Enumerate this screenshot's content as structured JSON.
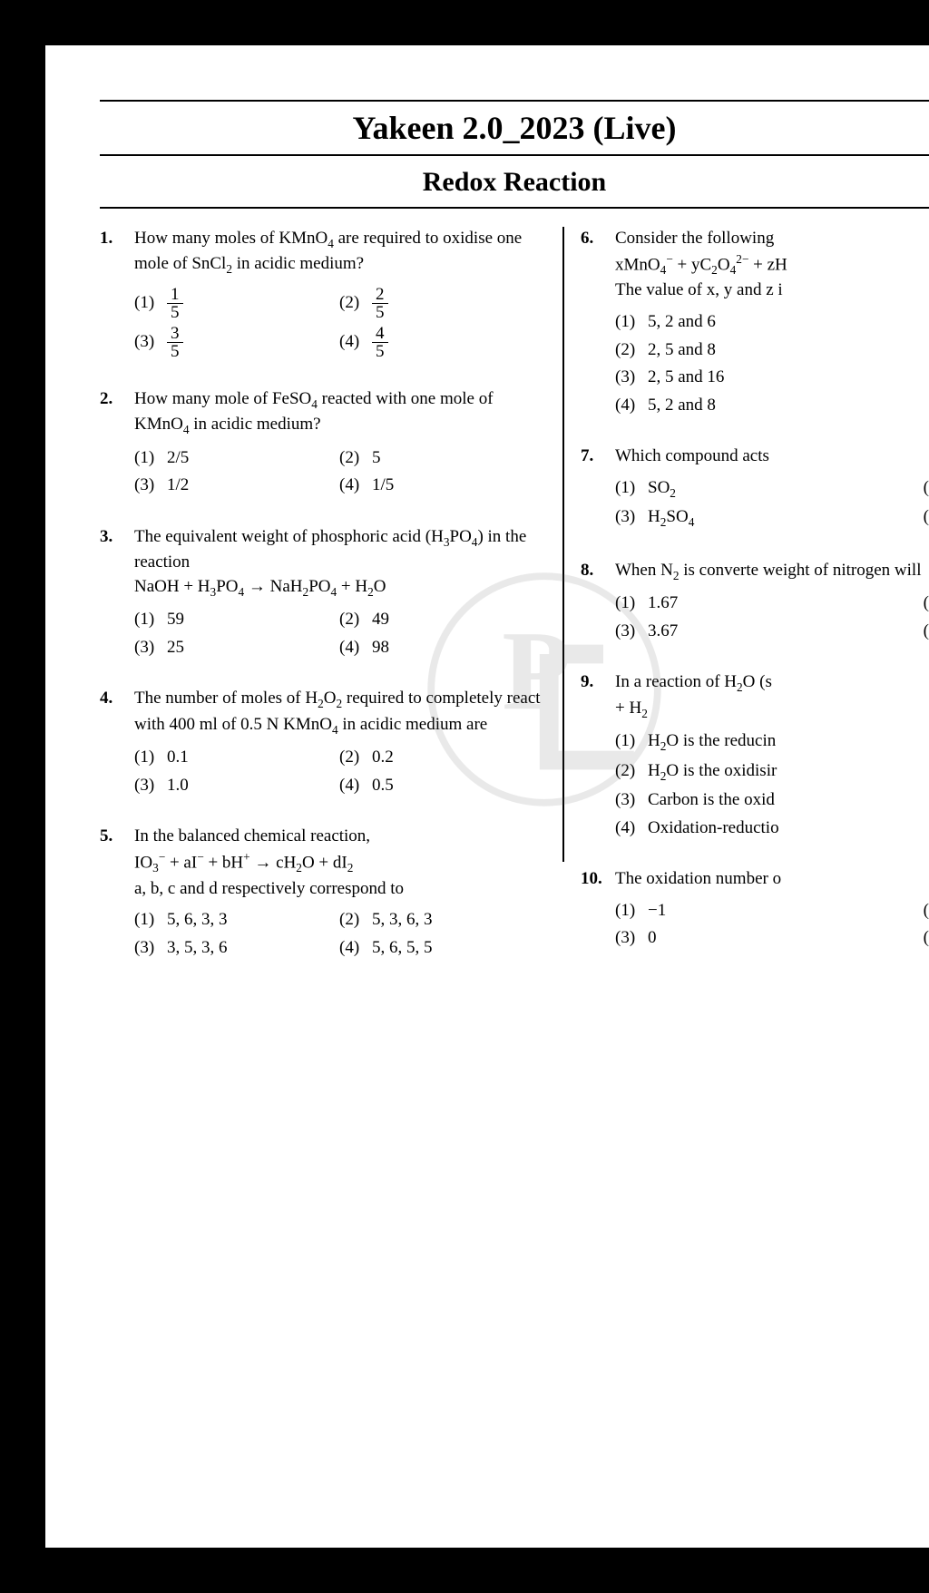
{
  "title": "Yakeen 2.0_2023 (Live)",
  "subtitle": "Redox Reaction",
  "left_questions": [
    {
      "num": "1.",
      "type": "frac",
      "text": "How many moles of KMnO<sub>4</sub> are required to oxidise one mole of SnCl<sub>2</sub> in acidic medium?",
      "options": [
        [
          {
            "n": "(1)",
            "num": "1",
            "den": "5"
          },
          {
            "n": "(2)",
            "num": "2",
            "den": "5"
          }
        ],
        [
          {
            "n": "(3)",
            "num": "3",
            "den": "5"
          },
          {
            "n": "(4)",
            "num": "4",
            "den": "5"
          }
        ]
      ]
    },
    {
      "num": "2.",
      "type": "plain",
      "text": "How many mole of FeSO<sub>4</sub> reacted with one mole of KMnO<sub>4</sub> in acidic medium?",
      "options": [
        [
          {
            "n": "(1)",
            "v": "2/5"
          },
          {
            "n": "(2)",
            "v": "5"
          }
        ],
        [
          {
            "n": "(3)",
            "v": "1/2"
          },
          {
            "n": "(4)",
            "v": "1/5"
          }
        ]
      ]
    },
    {
      "num": "3.",
      "type": "plain",
      "text": "The equivalent weight of phosphoric acid (H<sub>3</sub>PO<sub>4</sub>) in the reaction<br>NaOH + H<sub>3</sub>PO<sub>4</sub> → NaH<sub>2</sub>PO<sub>4</sub> + H<sub>2</sub>O",
      "options": [
        [
          {
            "n": "(1)",
            "v": "59"
          },
          {
            "n": "(2)",
            "v": "49"
          }
        ],
        [
          {
            "n": "(3)",
            "v": "25"
          },
          {
            "n": "(4)",
            "v": "98"
          }
        ]
      ]
    },
    {
      "num": "4.",
      "type": "plain",
      "text": "The number of moles of H<sub>2</sub>O<sub>2</sub> required to completely react with 400 ml of 0.5 N KMnO<sub>4</sub> in acidic medium are",
      "options": [
        [
          {
            "n": "(1)",
            "v": "0.1"
          },
          {
            "n": "(2)",
            "v": "0.2"
          }
        ],
        [
          {
            "n": "(3)",
            "v": "1.0"
          },
          {
            "n": "(4)",
            "v": "0.5"
          }
        ]
      ]
    },
    {
      "num": "5.",
      "type": "plain",
      "text": "In the balanced chemical reaction,<br>IO<sub>3</sub><sup>−</sup> + aI<sup>−</sup> + bH<sup>+</sup> → cH<sub>2</sub>O + dI<sub>2</sub><br>a, b, c and d respectively correspond to",
      "options": [
        [
          {
            "n": "(1)",
            "v": "5, 6, 3, 3"
          },
          {
            "n": "(2)",
            "v": "5, 3, 6, 3"
          }
        ],
        [
          {
            "n": "(3)",
            "v": "3, 5, 3, 6"
          },
          {
            "n": "(4)",
            "v": "5, 6, 5, 5"
          }
        ]
      ]
    }
  ],
  "right_questions": [
    {
      "num": "6.",
      "type": "full",
      "text": "Consider the following<br>xMnO<sub>4</sub><sup>−</sup> + yC<sub>2</sub>O<sub>4</sub><sup>2−</sup> + zH<br>The value of x, y and z i",
      "options": [
        {
          "n": "(1)",
          "v": "5, 2 and 6"
        },
        {
          "n": "(2)",
          "v": "2, 5 and 8"
        },
        {
          "n": "(3)",
          "v": "2, 5 and 16"
        },
        {
          "n": "(4)",
          "v": "5, 2 and 8"
        }
      ]
    },
    {
      "num": "7.",
      "type": "half-trail",
      "text": "Which compound acts ",
      "options": [
        [
          {
            "n": "(1)",
            "v": "SO<sub>2</sub>",
            "t": "("
          }
        ],
        [
          {
            "n": "(3)",
            "v": "H<sub>2</sub>SO<sub>4</sub>",
            "t": "("
          }
        ]
      ]
    },
    {
      "num": "8.",
      "type": "half-trail",
      "text": "When N<sub>2</sub> is converte weight of nitrogen will",
      "options": [
        [
          {
            "n": "(1)",
            "v": "1.67",
            "t": "("
          }
        ],
        [
          {
            "n": "(3)",
            "v": "3.67",
            "t": "("
          }
        ]
      ]
    },
    {
      "num": "9.",
      "type": "full",
      "text": "In a reaction of H<sub>2</sub>O (s<br>+ H<sub>2</sub>",
      "options": [
        {
          "n": "(1)",
          "v": "H<sub>2</sub>O is the reducin"
        },
        {
          "n": "(2)",
          "v": "H<sub>2</sub>O is the oxidisir"
        },
        {
          "n": "(3)",
          "v": "Carbon is the oxid"
        },
        {
          "n": "(4)",
          "v": "Oxidation-reductio"
        }
      ]
    },
    {
      "num": "10.",
      "type": "half-trail",
      "text": "The oxidation number o",
      "options": [
        [
          {
            "n": "(1)",
            "v": "−1",
            "t": "("
          }
        ],
        [
          {
            "n": "(3)",
            "v": "0",
            "t": "("
          }
        ]
      ]
    }
  ]
}
